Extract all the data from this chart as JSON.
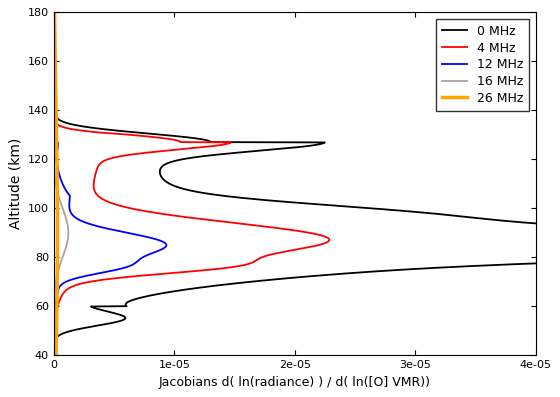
{
  "title": "",
  "xlabel": "Jacobians d( ln(radiance) ) / d( ln([O] VMR))",
  "ylabel": "Altitude (km)",
  "xlim": [
    0,
    4e-05
  ],
  "ylim": [
    40,
    180
  ],
  "yticks": [
    40,
    60,
    80,
    100,
    120,
    140,
    160,
    180
  ],
  "xticks": [
    0,
    1e-05,
    2e-05,
    3e-05,
    4e-05
  ],
  "xtick_labels": [
    "0",
    "1e-05",
    "2e-05",
    "3e-05",
    "4e-05"
  ],
  "legend_labels": [
    "0 MHz",
    "4 MHz",
    "12 MHz",
    "16 MHz",
    "26 MHz"
  ],
  "line_colors": [
    "#000000",
    "#ff0000",
    "#0000ff",
    "#b0a0a0",
    "#ffa500"
  ],
  "line_widths": [
    1.3,
    1.3,
    1.3,
    1.3,
    2.5
  ],
  "background_color": "#ffffff",
  "figsize": [
    5.6,
    3.97
  ],
  "dpi": 100
}
